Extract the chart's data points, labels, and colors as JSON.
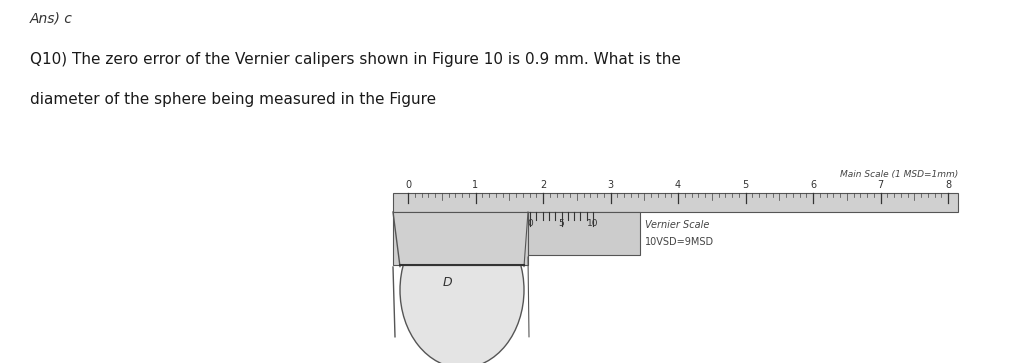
{
  "bg_color": "#ffffff",
  "text_ans": "Ans) c",
  "text_line1": "Q10) The zero error of the Vernier calipers shown in Figure 10 is 0.9 mm. What is the",
  "text_line2": "diameter of the sphere being measured in the Figure",
  "main_scale_label": "Main Scale (1 MSD=1mm)",
  "vernier_label_line1": "Vernier Scale",
  "vernier_label_line2": "10VSD=9MSD",
  "vernier_tick_labels": [
    "0",
    "5",
    "10"
  ],
  "main_scale_numbers": [
    "0",
    "1",
    "2",
    "3",
    "4",
    "5",
    "6",
    "7",
    "8"
  ],
  "diameter_label": "D"
}
